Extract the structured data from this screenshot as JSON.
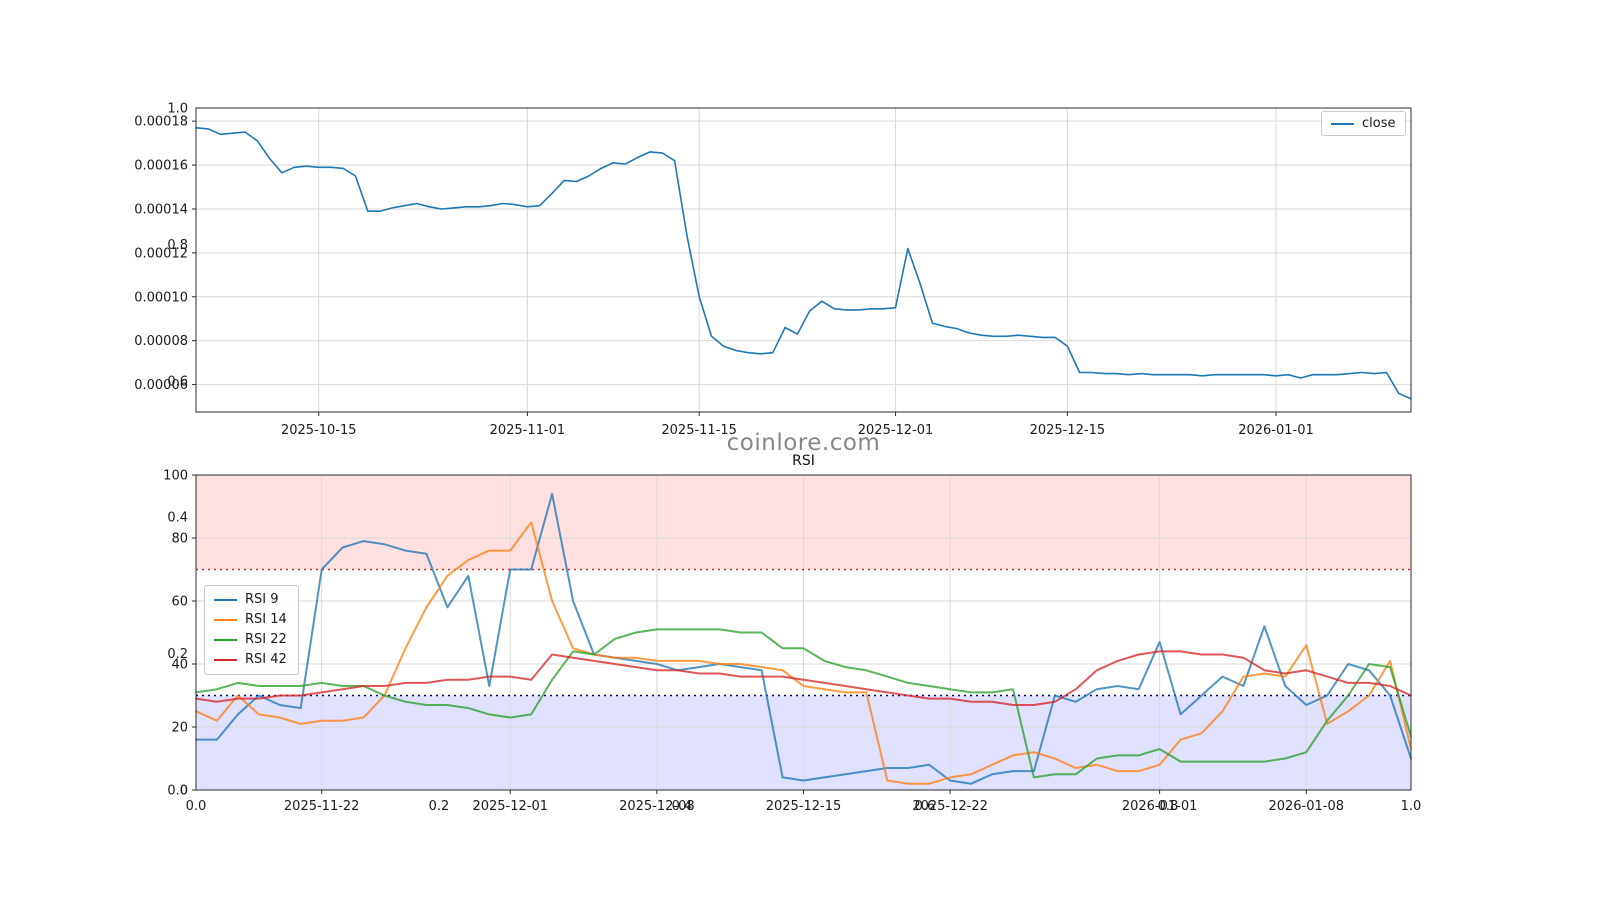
{
  "watermark": "coinlore.com",
  "ghost_axis": {
    "labels": [
      "0.0",
      "0.2",
      "0.4",
      "0.6",
      "0.8",
      "1.0"
    ]
  },
  "chart_data": [
    {
      "type": "line",
      "title": "",
      "legend_position": "upper right",
      "grid": true,
      "ylim": [
        4.75e-05,
        0.000186
      ],
      "y_ticks": [
        0.00018,
        0.00016,
        0.00014,
        0.00012,
        0.0001,
        8e-05,
        6e-05
      ],
      "y_tick_labels": [
        "0.00018",
        "0.00016",
        "0.00014",
        "0.00012",
        "0.00010",
        "0.00008",
        "0.00006"
      ],
      "x_tick_labels": [
        "2025-10-15",
        "2025-11-01",
        "2025-11-15",
        "2025-12-01",
        "2025-12-15",
        "2026-01-01"
      ],
      "x_tick_indices": [
        10,
        27,
        41,
        57,
        71,
        88
      ],
      "series": [
        {
          "name": "close",
          "color": "#1f77b4",
          "values": [
            0.000177,
            0.0001765,
            0.000174,
            0.0001745,
            0.000175,
            0.000171,
            0.000163,
            0.0001565,
            0.000159,
            0.0001595,
            0.000159,
            0.000159,
            0.0001585,
            0.000155,
            0.000139,
            0.000139,
            0.0001405,
            0.0001415,
            0.0001425,
            0.000141,
            0.00014,
            0.0001405,
            0.000141,
            0.000141,
            0.0001415,
            0.0001425,
            0.000142,
            0.000141,
            0.0001415,
            0.000147,
            0.000153,
            0.0001525,
            0.000155,
            0.0001585,
            0.000161,
            0.0001605,
            0.0001635,
            0.000166,
            0.0001655,
            0.000162,
            0.000128,
            0.0001,
            8.2e-05,
            7.75e-05,
            7.55e-05,
            7.45e-05,
            7.4e-05,
            7.45e-05,
            8.6e-05,
            8.3e-05,
            9.35e-05,
            9.8e-05,
            9.45e-05,
            9.4e-05,
            9.4e-05,
            9.45e-05,
            9.45e-05,
            9.5e-05,
            0.000122,
            0.000106,
            8.8e-05,
            8.65e-05,
            8.55e-05,
            8.35e-05,
            8.25e-05,
            8.2e-05,
            8.2e-05,
            8.25e-05,
            8.2e-05,
            8.15e-05,
            8.15e-05,
            7.75e-05,
            6.55e-05,
            6.55e-05,
            6.5e-05,
            6.5e-05,
            6.45e-05,
            6.5e-05,
            6.45e-05,
            6.45e-05,
            6.45e-05,
            6.45e-05,
            6.4e-05,
            6.45e-05,
            6.45e-05,
            6.45e-05,
            6.45e-05,
            6.45e-05,
            6.4e-05,
            6.45e-05,
            6.3e-05,
            6.45e-05,
            6.45e-05,
            6.45e-05,
            6.5e-05,
            6.55e-05,
            6.5e-05,
            6.55e-05,
            5.6e-05,
            5.35e-05
          ]
        }
      ]
    },
    {
      "type": "line",
      "title": "RSI",
      "legend_position": "center left",
      "grid": true,
      "ylim": [
        0,
        100
      ],
      "y_ticks": [
        100,
        80,
        60,
        40,
        20,
        0
      ],
      "y_tick_labels": [
        "100",
        "80",
        "60",
        "40",
        "20",
        "0"
      ],
      "x_tick_labels": [
        "2025-11-22",
        "2025-12-01",
        "2025-12-08",
        "2025-12-15",
        "2025-12-22",
        "2026-01-01",
        "2026-01-08"
      ],
      "x_tick_indices": [
        6,
        15,
        22,
        29,
        36,
        46,
        53
      ],
      "bands": [
        {
          "from": 70,
          "to": 100,
          "color": "rgba(255,0,0,0.12)",
          "meaning": "overbought"
        },
        {
          "from": 0,
          "to": 30,
          "color": "rgba(0,0,255,0.12)",
          "meaning": "oversold"
        }
      ],
      "hlines": [
        {
          "y": 70,
          "color": "#d62728",
          "style": "dotted"
        },
        {
          "y": 30,
          "color": "#000080",
          "style": "dotted"
        }
      ],
      "series": [
        {
          "name": "RSI 9",
          "color": "#1f77b4",
          "values": [
            16,
            16,
            24,
            30,
            27,
            26,
            70,
            77,
            79,
            78,
            76,
            75,
            58,
            68,
            33,
            70,
            70,
            94,
            60,
            43,
            42,
            41,
            40,
            38,
            39,
            40,
            39,
            38,
            4,
            3,
            4,
            5,
            6,
            7,
            7,
            8,
            3,
            2,
            5,
            6,
            6,
            30,
            28,
            32,
            33,
            32,
            47,
            24,
            30,
            36,
            33,
            52,
            33,
            27,
            30,
            40,
            38,
            30,
            10
          ]
        },
        {
          "name": "RSI 14",
          "color": "#ff7f0e",
          "values": [
            25,
            22,
            30,
            24,
            23,
            21,
            22,
            22,
            23,
            30,
            45,
            58,
            68,
            73,
            76,
            76,
            85,
            60,
            45,
            43,
            42,
            42,
            41,
            41,
            41,
            40,
            40,
            39,
            38,
            33,
            32,
            31,
            31,
            3,
            2,
            2,
            4,
            5,
            8,
            11,
            12,
            10,
            7,
            8,
            6,
            6,
            8,
            16,
            18,
            25,
            36,
            37,
            36,
            46,
            21,
            25,
            30,
            41,
            13
          ]
        },
        {
          "name": "RSI 22",
          "color": "#2ca02c",
          "values": [
            31,
            32,
            34,
            33,
            33,
            33,
            34,
            33,
            33,
            30,
            28,
            27,
            27,
            26,
            24,
            23,
            24,
            35,
            44,
            43,
            48,
            50,
            51,
            51,
            51,
            51,
            50,
            50,
            45,
            45,
            41,
            39,
            38,
            36,
            34,
            33,
            32,
            31,
            31,
            32,
            4,
            5,
            5,
            10,
            11,
            11,
            13,
            9,
            9,
            9,
            9,
            9,
            10,
            12,
            22,
            30,
            40,
            39,
            17
          ]
        },
        {
          "name": "RSI 42",
          "color": "#d62728",
          "values": [
            29,
            28,
            29,
            29,
            30,
            30,
            31,
            32,
            33,
            33,
            34,
            34,
            35,
            35,
            36,
            36,
            35,
            43,
            42,
            41,
            40,
            39,
            38,
            38,
            37,
            37,
            36,
            36,
            36,
            35,
            34,
            33,
            32,
            31,
            30,
            29,
            29,
            28,
            28,
            27,
            27,
            28,
            32,
            38,
            41,
            43,
            44,
            44,
            43,
            43,
            42,
            38,
            37,
            38,
            36,
            34,
            34,
            33,
            30
          ]
        }
      ]
    }
  ]
}
